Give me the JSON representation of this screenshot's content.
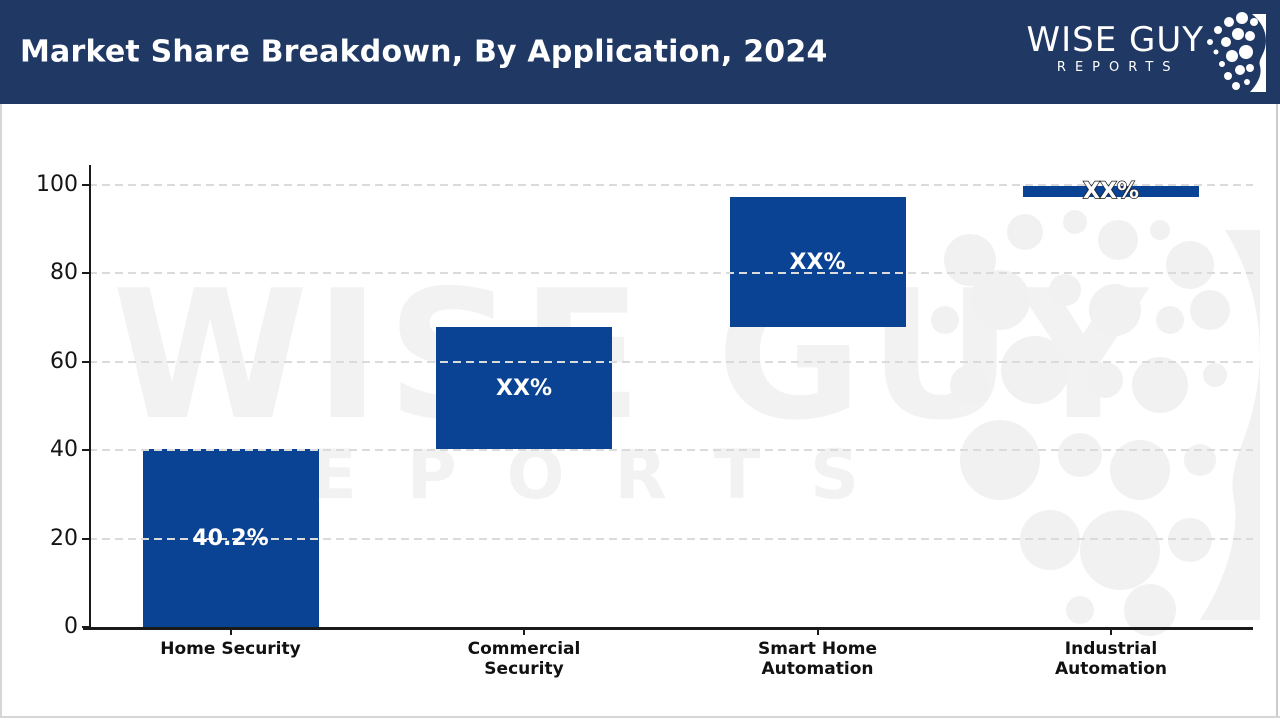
{
  "header": {
    "title": "Market Share Breakdown, By Application, 2024",
    "background": "#203864",
    "logo": {
      "line1": "WISE GUY",
      "line2": "REPORTS"
    }
  },
  "watermark": {
    "line1": "WISE GUY",
    "line2": "REPORTS"
  },
  "chart_data": {
    "type": "bar",
    "subtype": "waterfall",
    "title": "Market Share Breakdown, By Application, 2024",
    "categories": [
      "Home Security",
      "Commercial Security",
      "Smart Home Automation",
      "Industrial Automation"
    ],
    "category_lines": [
      [
        "Home Security"
      ],
      [
        "Commercial",
        "Security"
      ],
      [
        "Smart Home",
        "Automation"
      ],
      [
        "Industrial",
        "Automation"
      ]
    ],
    "segments": [
      {
        "category": "Home Security",
        "label": "40.2%",
        "start": 0,
        "end": 40.2
      },
      {
        "category": "Commercial Security",
        "label": "XX%",
        "start": 40.2,
        "end": 67.8
      },
      {
        "category": "Smart Home Automation",
        "label": "XX%",
        "start": 67.8,
        "end": 97.1
      },
      {
        "category": "Industrial Automation",
        "label": "XX%",
        "start": 97.1,
        "end": 99.8
      }
    ],
    "yticks": [
      0,
      20,
      40,
      60,
      80,
      100
    ],
    "ylim": [
      0,
      104.5
    ],
    "xlabel": "",
    "ylabel": "",
    "grid": "dashed-horizontal",
    "legend": "none",
    "bar_color": "#0a4294",
    "bar_label_color": "#ffffff",
    "axis_color": "#1a1a1a"
  }
}
